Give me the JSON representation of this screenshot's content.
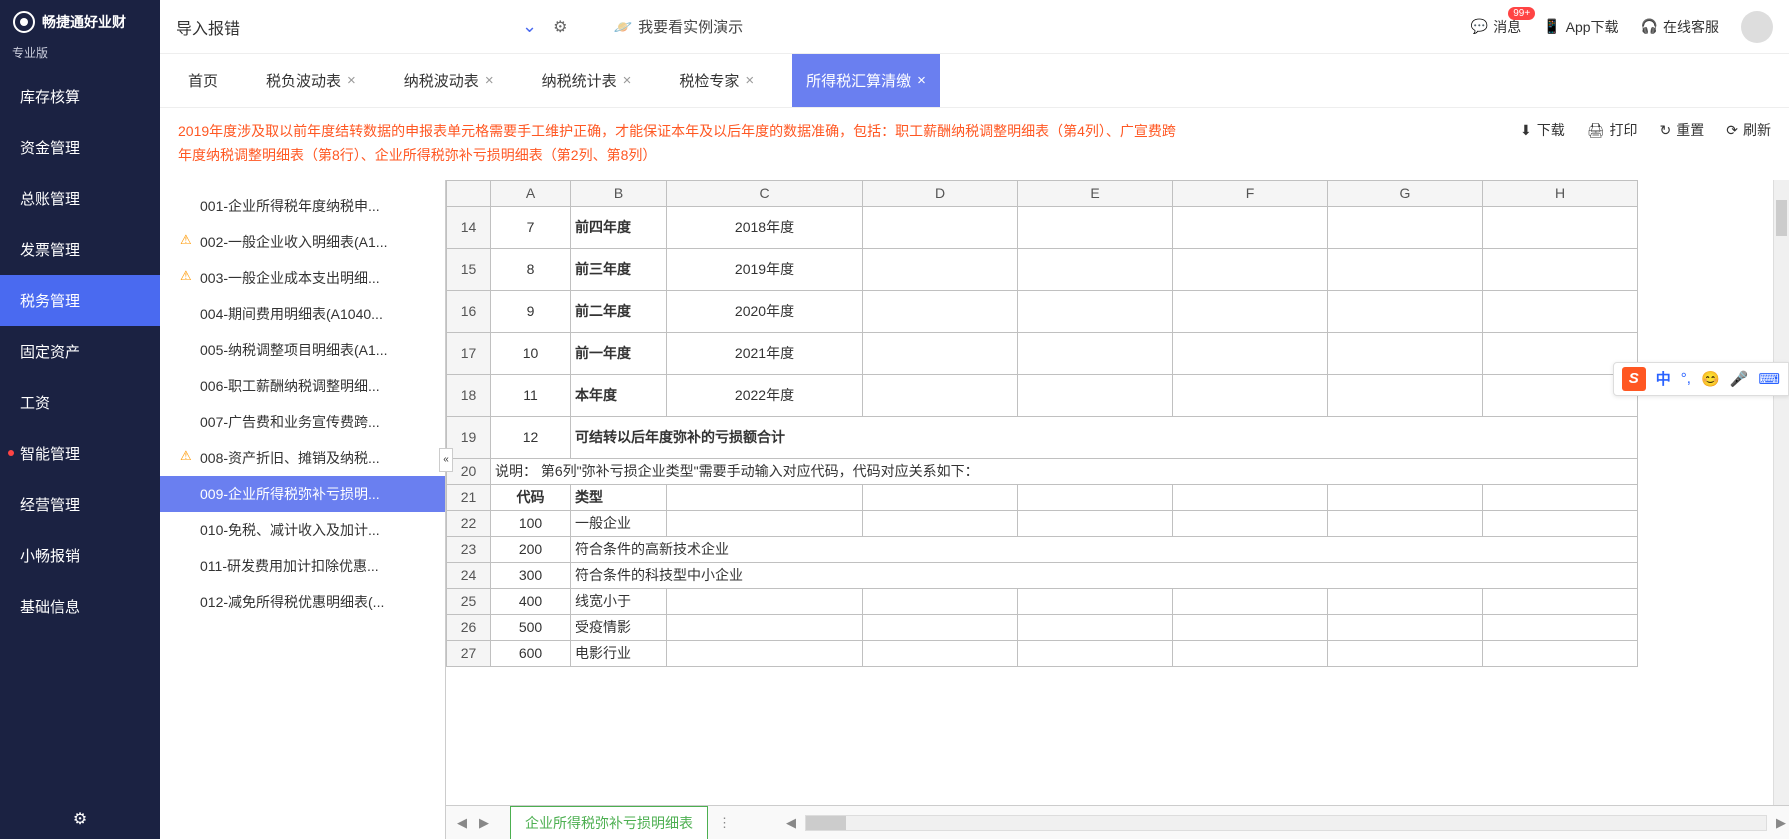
{
  "brand": {
    "name": "畅捷通好业财",
    "edition": "专业版"
  },
  "sidebar": {
    "items": [
      {
        "label": "库存核算",
        "active": false,
        "dot": false
      },
      {
        "label": "资金管理",
        "active": false,
        "dot": false
      },
      {
        "label": "总账管理",
        "active": false,
        "dot": false
      },
      {
        "label": "发票管理",
        "active": false,
        "dot": false
      },
      {
        "label": "税务管理",
        "active": true,
        "dot": false
      },
      {
        "label": "固定资产",
        "active": false,
        "dot": false
      },
      {
        "label": "工资",
        "active": false,
        "dot": false
      },
      {
        "label": "智能管理",
        "active": false,
        "dot": true
      },
      {
        "label": "经营管理",
        "active": false,
        "dot": false
      },
      {
        "label": "小畅报销",
        "active": false,
        "dot": false
      },
      {
        "label": "基础信息",
        "active": false,
        "dot": false
      }
    ]
  },
  "topbar": {
    "title": "导入报错",
    "demo": "我要看实例演示",
    "right": {
      "message": "消息",
      "badge": "99+",
      "app": "App下载",
      "service": "在线客服"
    }
  },
  "tabs": [
    {
      "label": "首页",
      "closable": false,
      "active": false
    },
    {
      "label": "税负波动表",
      "closable": true,
      "active": false
    },
    {
      "label": "纳税波动表",
      "closable": true,
      "active": false
    },
    {
      "label": "纳税统计表",
      "closable": true,
      "active": false
    },
    {
      "label": "税检专家",
      "closable": true,
      "active": false
    },
    {
      "label": "所得税汇算清缴",
      "closable": true,
      "active": true
    }
  ],
  "notice": "2019年度涉及取以前年度结转数据的申报表单元格需要手工维护正确，才能保证本年及以后年度的数据准确，包括：职工薪酬纳税调整明细表（第4列）、广宣费跨年度纳税调整明细表（第8行）、企业所得税弥补亏损明细表（第2列、第8列）",
  "actions": {
    "download": "下载",
    "print": "打印",
    "reset": "重置",
    "refresh": "刷新"
  },
  "tree": [
    {
      "label": "001-企业所得税年度纳税申...",
      "warn": false,
      "active": false
    },
    {
      "label": "002-一般企业收入明细表(A1...",
      "warn": true,
      "active": false
    },
    {
      "label": "003-一般企业成本支出明细...",
      "warn": true,
      "active": false
    },
    {
      "label": "004-期间费用明细表(A1040...",
      "warn": false,
      "active": false
    },
    {
      "label": "005-纳税调整项目明细表(A1...",
      "warn": false,
      "active": false
    },
    {
      "label": "006-职工薪酬纳税调整明细...",
      "warn": false,
      "active": false
    },
    {
      "label": "007-广告费和业务宣传费跨...",
      "warn": false,
      "active": false
    },
    {
      "label": "008-资产折旧、摊销及纳税...",
      "warn": true,
      "active": false
    },
    {
      "label": "009-企业所得税弥补亏损明...",
      "warn": false,
      "active": true
    },
    {
      "label": "010-免税、减计收入及加计...",
      "warn": false,
      "active": false
    },
    {
      "label": "011-研发费用加计扣除优惠...",
      "warn": false,
      "active": false
    },
    {
      "label": "012-减免所得税优惠明细表(...",
      "warn": false,
      "active": false
    }
  ],
  "sheet": {
    "columns": [
      "A",
      "B",
      "C",
      "D",
      "E",
      "F",
      "G",
      "H"
    ],
    "rows": [
      {
        "n": 14,
        "a": "7",
        "b": "前四年度",
        "c": "2018年度",
        "tall": true,
        "boldB": true
      },
      {
        "n": 15,
        "a": "8",
        "b": "前三年度",
        "c": "2019年度",
        "tall": true,
        "boldB": true
      },
      {
        "n": 16,
        "a": "9",
        "b": "前二年度",
        "c": "2020年度",
        "tall": true,
        "boldB": true
      },
      {
        "n": 17,
        "a": "10",
        "b": "前一年度",
        "c": "2021年度",
        "tall": true,
        "boldB": true
      },
      {
        "n": 18,
        "a": "11",
        "b": "本年度",
        "c": "2022年度",
        "tall": true,
        "boldB": true
      },
      {
        "n": 19,
        "a": "12",
        "merged": "可结转以后年度弥补的亏损额合计",
        "tall": true,
        "boldMerged": true
      },
      {
        "n": 20,
        "merged": "说明：  第6列\"弥补亏损企业类型\"需要手动输入对应代码，代码对应关系如下："
      },
      {
        "n": 21,
        "a": "代码",
        "b": "类型",
        "boldA": true,
        "boldB": true
      },
      {
        "n": 22,
        "a": "100",
        "b": "一般企业"
      },
      {
        "n": 23,
        "a": "200",
        "b": "符合条件的高新技术企业"
      },
      {
        "n": 24,
        "a": "300",
        "b": "符合条件的科技型中小企业"
      },
      {
        "n": 25,
        "a": "400",
        "b": "线宽小于"
      },
      {
        "n": 26,
        "a": "500",
        "b": "受疫情影"
      },
      {
        "n": 27,
        "a": "600",
        "b": "电影行业"
      }
    ],
    "tab": "企业所得税弥补亏损明细表"
  },
  "ime": {
    "cn": "中"
  },
  "colors": {
    "sidebar_bg": "#1b2242",
    "sidebar_active": "#4a6af0",
    "tab_active": "#6a7ff0",
    "notice_text": "#ff5722",
    "sheet_tab_border": "#4caf50"
  }
}
